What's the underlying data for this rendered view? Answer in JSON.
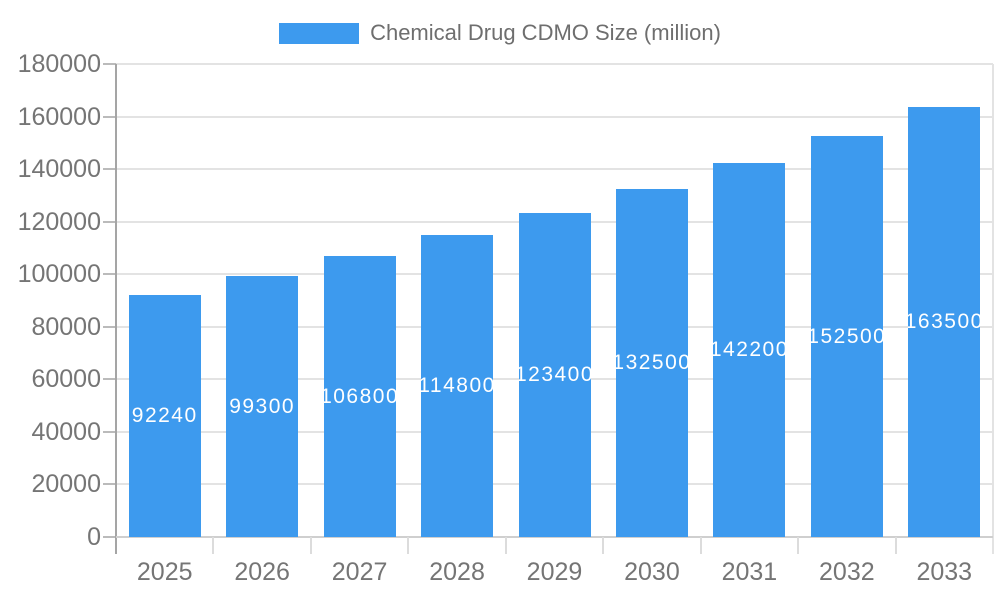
{
  "legend": {
    "label": "Chemical Drug CDMO Size (million)"
  },
  "chart_data": {
    "type": "bar",
    "title": "Chemical Drug CDMO Size (million)",
    "categories": [
      "2025",
      "2026",
      "2027",
      "2028",
      "2029",
      "2030",
      "2031",
      "2032",
      "2033"
    ],
    "values": [
      92240,
      99300,
      106800,
      114800,
      123400,
      132500,
      142200,
      152500,
      163500
    ],
    "value_labels": [
      "92240",
      "99300",
      "106800",
      "114800",
      "123400",
      "132500",
      "142200",
      "152500",
      "163500"
    ],
    "xlabel": "",
    "ylabel": "",
    "ylim": [
      0,
      180000
    ],
    "y_tick_step": 20000,
    "y_tick_labels": [
      "0",
      "20000",
      "40000",
      "60000",
      "80000",
      "100000",
      "120000",
      "140000",
      "160000",
      "180000"
    ],
    "grid": true,
    "legend_position": "top",
    "bar_label_position": "inside-center"
  },
  "colors": {
    "bar": "#3D9AEE",
    "bar_label_text": "#FFFFFF",
    "grid_line": "#E3E3E3",
    "y_axis_line": "#A5A5A5",
    "x_axis_line": "#CFCFCF",
    "y_tick_mark": "#BBBBBB",
    "x_tick_mark": "#DCDCDC",
    "right_border": "#E3E3E3",
    "axis_text": "#757575",
    "legend_text": "#6E6E6E"
  }
}
